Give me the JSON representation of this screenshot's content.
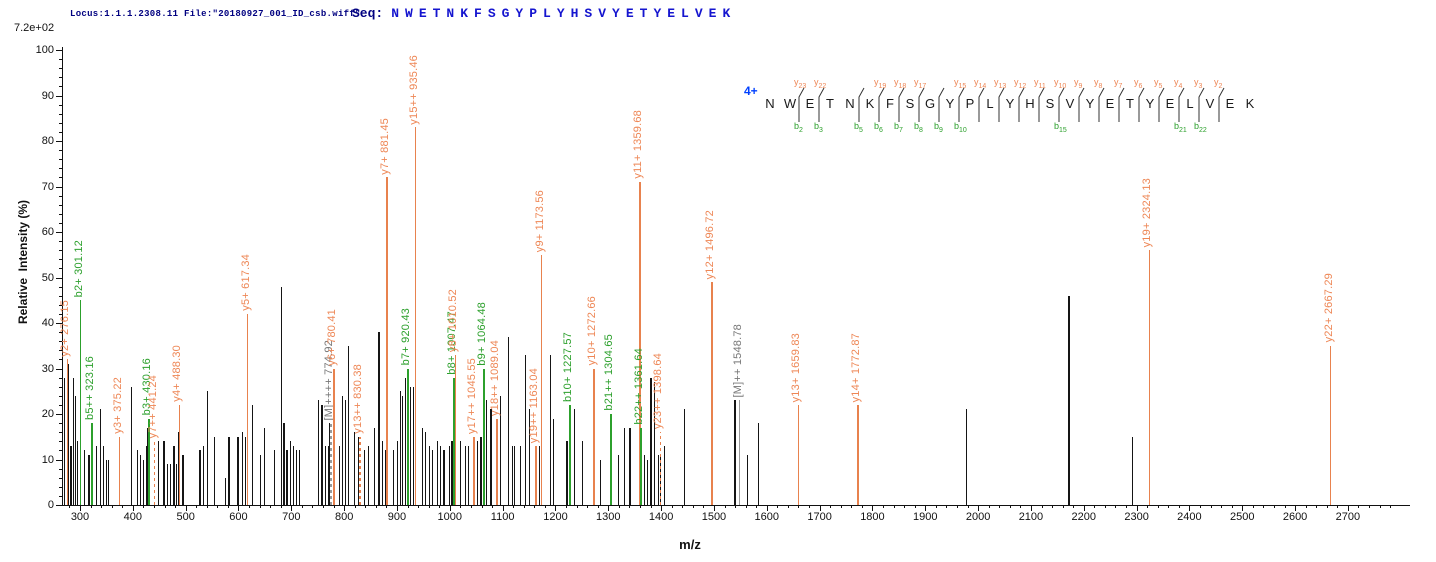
{
  "header": {
    "locus_file": "Locus:1.1.1.2308.11 File:\"20180927_001_ID_csb.wiff\"",
    "seq_label": "Seq:",
    "sequence": "NWETNKFSGYPLYHSVYETYELVEK"
  },
  "colors": {
    "y_ion": "#e8824e",
    "b_ion": "#2ca02c",
    "precursor": "#9a9a9a",
    "unlabeled_peak": "#151515",
    "header_navy": "#000080",
    "sequence_blue": "#1515cf",
    "charge_blue": "#0040ff"
  },
  "chart_data": {
    "type": "bar",
    "chart_kind": "ms2-fragmentation-spectrum",
    "title": "",
    "xlabel": "m/z",
    "ylabel": "Relative  Intensity (%)",
    "intensity_scale": "7.2e+02",
    "xlim": [
      270,
      2800
    ],
    "ylim": [
      0,
      100
    ],
    "x_ticks": {
      "start": 300,
      "end": 2700,
      "step": 100,
      "minor_step": 20
    },
    "y_ticks": {
      "start": 0,
      "end": 100,
      "step": 10,
      "minor_step": 2
    },
    "grid": false,
    "precursor_charge": "4+",
    "peptide_ladder": [
      {
        "aa": "N"
      },
      {
        "aa": "W"
      },
      {
        "aa": "E",
        "y": "y23",
        "b": "b2"
      },
      {
        "aa": "T",
        "y": "y22",
        "b": "b3"
      },
      {
        "aa": "N"
      },
      {
        "aa": "K",
        "b": "b5"
      },
      {
        "aa": "F",
        "y": "y19",
        "b": "b6"
      },
      {
        "aa": "S",
        "y": "y18",
        "b": "b7"
      },
      {
        "aa": "G",
        "y": "y17",
        "b": "b8"
      },
      {
        "aa": "Y",
        "b": "b9"
      },
      {
        "aa": "P",
        "y": "y15",
        "b": "b10"
      },
      {
        "aa": "L",
        "y": "y14"
      },
      {
        "aa": "Y",
        "y": "y13"
      },
      {
        "aa": "H",
        "y": "y12"
      },
      {
        "aa": "S",
        "y": "y11"
      },
      {
        "aa": "V",
        "y": "y10",
        "b": "b15"
      },
      {
        "aa": "Y",
        "y": "y9"
      },
      {
        "aa": "E",
        "y": "y8"
      },
      {
        "aa": "T",
        "y": "y7"
      },
      {
        "aa": "Y",
        "y": "y6"
      },
      {
        "aa": "E",
        "y": "y5"
      },
      {
        "aa": "L",
        "y": "y4",
        "b": "b21"
      },
      {
        "aa": "V",
        "y": "y3",
        "b": "b22"
      },
      {
        "aa": "E",
        "y": "y2"
      },
      {
        "aa": "K"
      }
    ],
    "labeled_peaks": [
      {
        "ion": "y2+",
        "mz": 276.15,
        "h": 32,
        "t": "y"
      },
      {
        "ion": "b2+",
        "mz": 301.12,
        "h": 45,
        "t": "b"
      },
      {
        "ion": "b5++",
        "mz": 323.16,
        "h": 18,
        "t": "b"
      },
      {
        "ion": "y3+",
        "mz": 375.22,
        "h": 15,
        "t": "y"
      },
      {
        "ion": "b3+",
        "mz": 430.16,
        "h": 19,
        "t": "b"
      },
      {
        "ion": "y7++",
        "mz": 441.24,
        "h": 14,
        "t": "y",
        "dash": true
      },
      {
        "ion": "y4+",
        "mz": 488.3,
        "h": 22,
        "t": "y"
      },
      {
        "ion": "y5+",
        "mz": 617.34,
        "h": 42,
        "t": "y"
      },
      {
        "ion": "[M]++++",
        "mz": 774.92,
        "h": 18,
        "t": "M",
        "dash": true
      },
      {
        "ion": "y6+",
        "mz": 780.41,
        "h": 30,
        "t": "y"
      },
      {
        "ion": "y13++",
        "mz": 830.38,
        "h": 15,
        "t": "y",
        "dash": true
      },
      {
        "ion": "y7+",
        "mz": 881.45,
        "h": 72,
        "t": "y"
      },
      {
        "ion": "b7+",
        "mz": 920.43,
        "h": 30,
        "t": "b"
      },
      {
        "ion": "y15++",
        "mz": 935.46,
        "h": 83,
        "t": "y"
      },
      {
        "ion": "b8+",
        "mz": 1007.47,
        "h": 28,
        "t": "b"
      },
      {
        "ion": "y8+",
        "mz": 1010.52,
        "h": 33,
        "t": "y"
      },
      {
        "ion": "y17++",
        "mz": 1045.55,
        "h": 15,
        "t": "y"
      },
      {
        "ion": "b9+",
        "mz": 1064.48,
        "h": 30,
        "t": "b"
      },
      {
        "ion": "y18++",
        "mz": 1089.04,
        "h": 19,
        "t": "y"
      },
      {
        "ion": "y19++",
        "mz": 1163.04,
        "h": 13,
        "t": "y"
      },
      {
        "ion": "y9+",
        "mz": 1173.56,
        "h": 55,
        "t": "y"
      },
      {
        "ion": "b10+",
        "mz": 1227.57,
        "h": 22,
        "t": "b"
      },
      {
        "ion": "y10+",
        "mz": 1272.66,
        "h": 30,
        "t": "y"
      },
      {
        "ion": "b21++",
        "mz": 1304.65,
        "h": 20,
        "t": "b"
      },
      {
        "ion": "y11+",
        "mz": 1359.68,
        "h": 71,
        "t": "y"
      },
      {
        "ion": "b22++",
        "mz": 1361.64,
        "h": 17,
        "t": "b"
      },
      {
        "ion": "y23++",
        "mz": 1398.64,
        "h": 16,
        "t": "y",
        "dash": true
      },
      {
        "ion": "y12+",
        "mz": 1496.72,
        "h": 49,
        "t": "y"
      },
      {
        "ion": "[M]++",
        "mz": 1548.78,
        "h": 23,
        "t": "M"
      },
      {
        "ion": "y13+",
        "mz": 1659.83,
        "h": 22,
        "t": "y"
      },
      {
        "ion": "y14+",
        "mz": 1772.87,
        "h": 22,
        "t": "y"
      },
      {
        "ion": "y19+",
        "mz": 2324.13,
        "h": 56,
        "t": "y"
      },
      {
        "ion": "y22+",
        "mz": 2667.29,
        "h": 35,
        "t": "y"
      }
    ],
    "unlabeled_peaks": [
      [
        271,
        28
      ],
      [
        279,
        31
      ],
      [
        283,
        13
      ],
      [
        287,
        28
      ],
      [
        291,
        24
      ],
      [
        296,
        14
      ],
      [
        309,
        12
      ],
      [
        317,
        11
      ],
      [
        331,
        13
      ],
      [
        339,
        21
      ],
      [
        345,
        13
      ],
      [
        350,
        10
      ],
      [
        354,
        10
      ],
      [
        398,
        26
      ],
      [
        409,
        12
      ],
      [
        415,
        11
      ],
      [
        420,
        10
      ],
      [
        426,
        13
      ],
      [
        428,
        17
      ],
      [
        448,
        14
      ],
      [
        459,
        14
      ],
      [
        465,
        9
      ],
      [
        471,
        9
      ],
      [
        478,
        13
      ],
      [
        482,
        9
      ],
      [
        487,
        16
      ],
      [
        495,
        11
      ],
      [
        527,
        12
      ],
      [
        534,
        13
      ],
      [
        541,
        25
      ],
      [
        554,
        15
      ],
      [
        575,
        6
      ],
      [
        582,
        15
      ],
      [
        599,
        15
      ],
      [
        607,
        16
      ],
      [
        613,
        15
      ],
      [
        627,
        22
      ],
      [
        641,
        11
      ],
      [
        649,
        17
      ],
      [
        668,
        12
      ],
      [
        681,
        48
      ],
      [
        686,
        18
      ],
      [
        692,
        12
      ],
      [
        698,
        14
      ],
      [
        704,
        13
      ],
      [
        710,
        12
      ],
      [
        715,
        12
      ],
      [
        752,
        23
      ],
      [
        758,
        22
      ],
      [
        765,
        13
      ],
      [
        770,
        13
      ],
      [
        773,
        18
      ],
      [
        791,
        13
      ],
      [
        797,
        24
      ],
      [
        803,
        23
      ],
      [
        808,
        35
      ],
      [
        820,
        16
      ],
      [
        827,
        15
      ],
      [
        838,
        12
      ],
      [
        846,
        13
      ],
      [
        858,
        17
      ],
      [
        866,
        38
      ],
      [
        873,
        14
      ],
      [
        879,
        12
      ],
      [
        893,
        12
      ],
      [
        901,
        14
      ],
      [
        906,
        25
      ],
      [
        911,
        24
      ],
      [
        916,
        28
      ],
      [
        926,
        26
      ],
      [
        931,
        26
      ],
      [
        948,
        17
      ],
      [
        954,
        16
      ],
      [
        961,
        13
      ],
      [
        967,
        12
      ],
      [
        976,
        14
      ],
      [
        983,
        13
      ],
      [
        989,
        12
      ],
      [
        1000,
        13
      ],
      [
        1004,
        14
      ],
      [
        1021,
        14
      ],
      [
        1029,
        13
      ],
      [
        1036,
        13
      ],
      [
        1053,
        14
      ],
      [
        1059,
        15
      ],
      [
        1070,
        23
      ],
      [
        1078,
        21
      ],
      [
        1096,
        24
      ],
      [
        1111,
        37
      ],
      [
        1119,
        13
      ],
      [
        1123,
        13
      ],
      [
        1134,
        13
      ],
      [
        1144,
        33
      ],
      [
        1151,
        21
      ],
      [
        1170,
        13
      ],
      [
        1190,
        33
      ],
      [
        1197,
        19
      ],
      [
        1222,
        14
      ],
      [
        1236,
        21
      ],
      [
        1251,
        14
      ],
      [
        1286,
        10
      ],
      [
        1320,
        11
      ],
      [
        1331,
        17
      ],
      [
        1341,
        17
      ],
      [
        1369,
        11
      ],
      [
        1374,
        10
      ],
      [
        1381,
        28
      ],
      [
        1387,
        27
      ],
      [
        1395,
        11
      ],
      [
        1399,
        11
      ],
      [
        1407,
        13
      ],
      [
        1445,
        21
      ],
      [
        1540,
        23
      ],
      [
        1563,
        11
      ],
      [
        1584,
        18
      ],
      [
        1978,
        21
      ],
      [
        2172,
        46
      ],
      [
        2293,
        15
      ]
    ]
  }
}
